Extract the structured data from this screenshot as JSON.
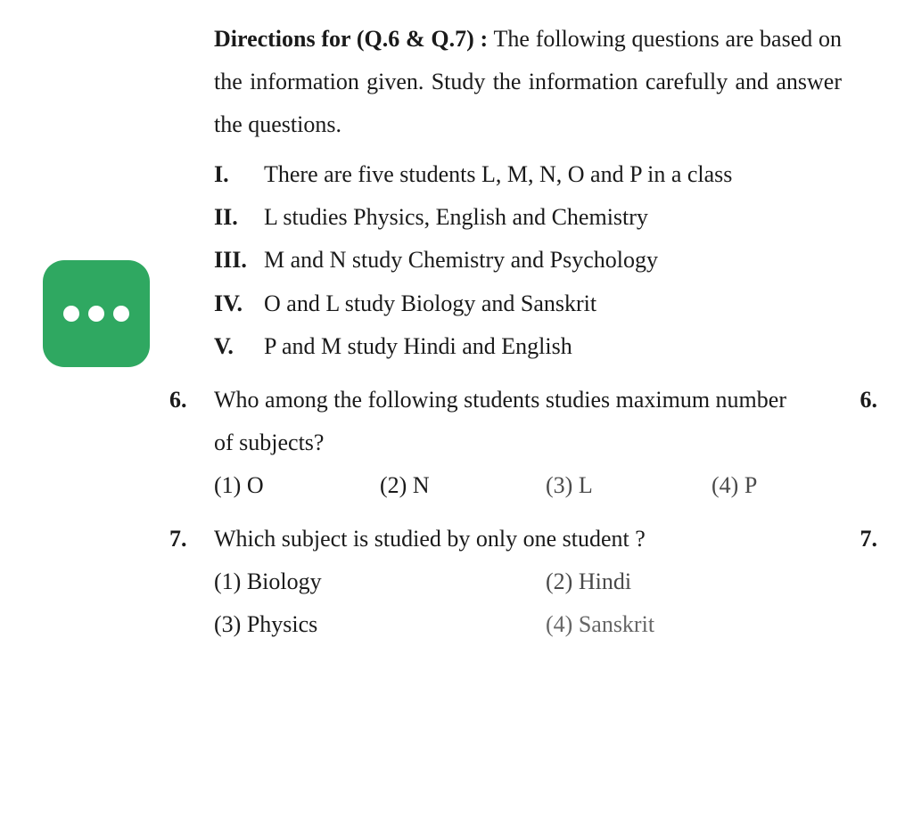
{
  "directions": {
    "bold_lead": "Directions for (Q.6 & Q.7) :",
    "rest": " The following questions are based on the information given. Study the information carefully and answer the questions."
  },
  "info": [
    {
      "roman": "I.",
      "text": "There are five students L, M, N, O and P in a class"
    },
    {
      "roman": "II.",
      "text": "L studies Physics, English and Chemistry"
    },
    {
      "roman": "III.",
      "text": "M and N study Chemistry and Psychology"
    },
    {
      "roman": "IV.",
      "text": "O and L study Biology and Sanskrit"
    },
    {
      "roman": "V.",
      "text": "P and M study Hindi and English"
    }
  ],
  "q6": {
    "num": "6.",
    "text": "Who among the following students studies maximum number of subjects?",
    "right_num": "6.",
    "options": [
      {
        "label": "(1) O"
      },
      {
        "label": "(2) N"
      },
      {
        "label": "(3) L"
      },
      {
        "label": "(4) P"
      }
    ]
  },
  "q7": {
    "num": "7.",
    "text": "Which subject is studied by only one student ?",
    "right_num": "7.",
    "options": [
      {
        "label": "(1) Biology"
      },
      {
        "label": "(2) Hindi"
      },
      {
        "label": "(3) Physics"
      },
      {
        "label": "(4) Sanskrit"
      }
    ]
  },
  "colors": {
    "icon_bg": "#2fa861",
    "text": "#1a1a1a",
    "faded": "#4a4a4a"
  }
}
